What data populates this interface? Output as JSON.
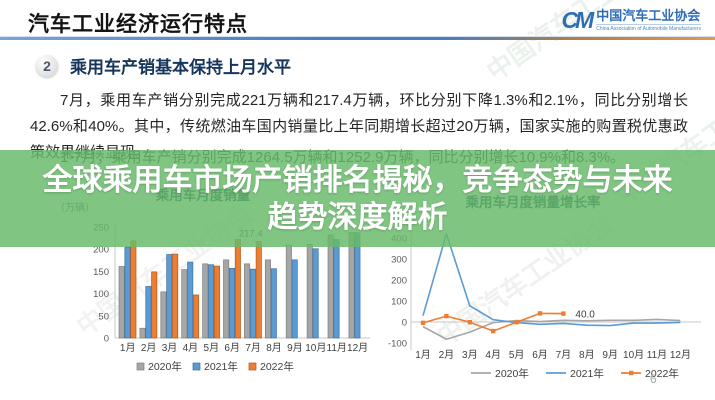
{
  "header": {
    "title": "汽车工业经济运行特点",
    "logo": {
      "mark": "CM",
      "org_cn": "中国汽车工业协会",
      "org_en": "China Association of Automobile Manufacturers"
    }
  },
  "section": {
    "number": "2",
    "title": "乘用车产销基本保持上月水平"
  },
  "paragraphs": {
    "p1": "7月，乘用车产销分别完成221万辆和217.4万辆，环比分别下降1.3%和2.1%，同比分别增长42.6%和40%。其中，传统燃油车国内销量比上年同期增长超过20万辆，国家实施的购置税优惠政策效果继续显现。",
    "p2": "1-7月，乘用车产销分别完成1264.5万辆和1252.9万辆，同比分别增长10.9%和8.3%。"
  },
  "overlay": {
    "line1": "全球乘用车市场产销排名揭秘，竞争态势与未来",
    "line2": "趋势深度解析",
    "bg_color": "#68ba6a"
  },
  "watermark_text": "中国汽车工业协会",
  "page_number": "6",
  "colors": {
    "accent_blue": "#2f6db5",
    "series_2020": "#a6a6a6",
    "series_2021": "#5b9bd5",
    "series_2022": "#ed7d31",
    "axis_gray": "#c9c9c9",
    "tick_text": "#595959",
    "title_navy": "#17375e"
  },
  "chart_data": [
    {
      "type": "bar",
      "title": "乘用车月度销量",
      "unit_label": "（万辆）",
      "xlabel": "",
      "ylabel": "万辆",
      "categories": [
        "1月",
        "2月",
        "3月",
        "4月",
        "5月",
        "6月",
        "7月",
        "8月",
        "9月",
        "10月",
        "11月",
        "12月"
      ],
      "series": [
        {
          "name": "2020年",
          "color": "#a6a6a6",
          "edge": "#7f7f7f",
          "values": [
            161,
            22,
            104,
            154,
            167,
            176,
            167,
            176,
            209,
            211,
            232,
            238
          ]
        },
        {
          "name": "2021年",
          "color": "#5b9bd5",
          "edge": "#41719c",
          "values": [
            205,
            116,
            188,
            171,
            165,
            157,
            155,
            156,
            176,
            201,
            222,
            237
          ]
        },
        {
          "name": "2022年",
          "color": "#ed7d31",
          "edge": "#ae5a21",
          "values": [
            219,
            149,
            189,
            97,
            162,
            222,
            217.4,
            null,
            null,
            null,
            null,
            null
          ]
        }
      ],
      "ylim": [
        0,
        250
      ],
      "yticks": [
        0,
        50,
        100,
        150,
        200,
        250
      ],
      "grid": false,
      "legend_position": "bottom",
      "data_label": {
        "series_index": 2,
        "category_index": 6,
        "text": "217.4"
      }
    },
    {
      "type": "line",
      "title": "乘用车月度销量增长率",
      "unit_label": "",
      "xlabel": "",
      "ylabel": "%",
      "categories": [
        "1月",
        "2月",
        "3月",
        "4月",
        "5月",
        "6月",
        "7月",
        "8月",
        "9月",
        "10月",
        "11月",
        "12月"
      ],
      "series": [
        {
          "name": "2020年",
          "color": "#a6a6a6",
          "marker": false,
          "values": [
            -22,
            -82,
            -48,
            -3,
            7,
            2,
            8,
            6,
            8,
            8,
            12,
            7
          ]
        },
        {
          "name": "2021年",
          "color": "#5b9bd5",
          "marker": false,
          "values": [
            30,
            420,
            77,
            11,
            -3,
            -11,
            -7,
            -15,
            -17,
            -5,
            -5,
            -2
          ]
        },
        {
          "name": "2022年",
          "color": "#ed7d31",
          "marker": true,
          "values": [
            -4,
            28,
            -1,
            -43,
            -1,
            41,
            40,
            null,
            null,
            null,
            null,
            null
          ]
        }
      ],
      "ylim": [
        -100,
        450
      ],
      "yticks": [
        400,
        300,
        200,
        100,
        0,
        -100
      ],
      "grid": false,
      "legend_position": "bottom",
      "data_label": {
        "series_index": 2,
        "category_index": 6,
        "text": "40.0"
      }
    }
  ]
}
